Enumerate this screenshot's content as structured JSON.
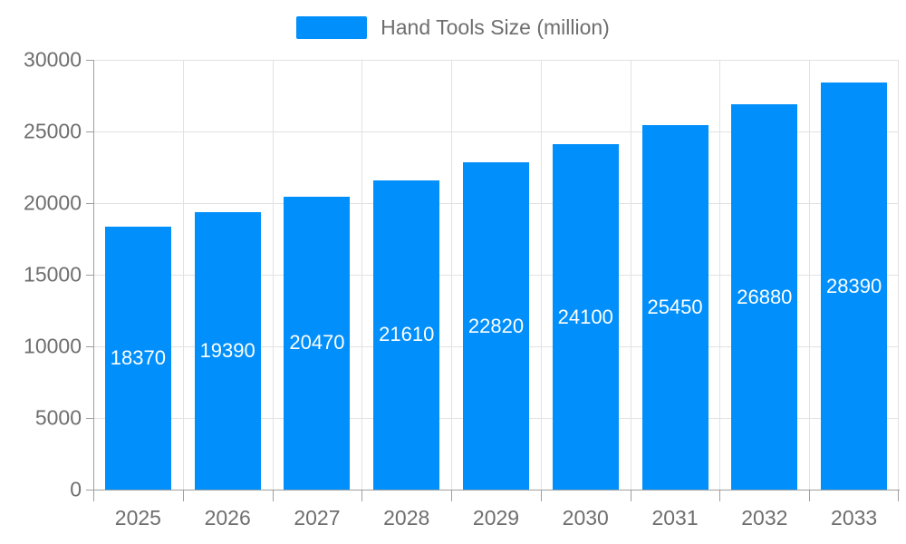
{
  "legend": {
    "label": "Hand Tools Size (million)"
  },
  "colors": {
    "bar": "#008FFB",
    "bar_label": "#ffffff",
    "grid": "#e2e2e2",
    "axis": "#9e9e9e",
    "tick_text": "#6e6e6e"
  },
  "chart_data": {
    "type": "bar",
    "title": "",
    "legend_entries": [
      "Hand Tools Size (million)"
    ],
    "legend_position": "top",
    "categories": [
      "2025",
      "2026",
      "2027",
      "2028",
      "2029",
      "2030",
      "2031",
      "2032",
      "2033"
    ],
    "series": [
      {
        "name": "Hand Tools Size (million)",
        "values": [
          18370,
          19390,
          20470,
          21610,
          22820,
          24100,
          25450,
          26880,
          28390
        ]
      }
    ],
    "bar_labels": [
      "18370",
      "19390",
      "20470",
      "21610",
      "22820",
      "24100",
      "25450",
      "26880",
      "28390"
    ],
    "xlabel": "",
    "ylabel": "",
    "ylim": [
      0,
      30000
    ],
    "yticks": [
      0,
      5000,
      10000,
      15000,
      20000,
      25000,
      30000
    ],
    "grid": true
  }
}
